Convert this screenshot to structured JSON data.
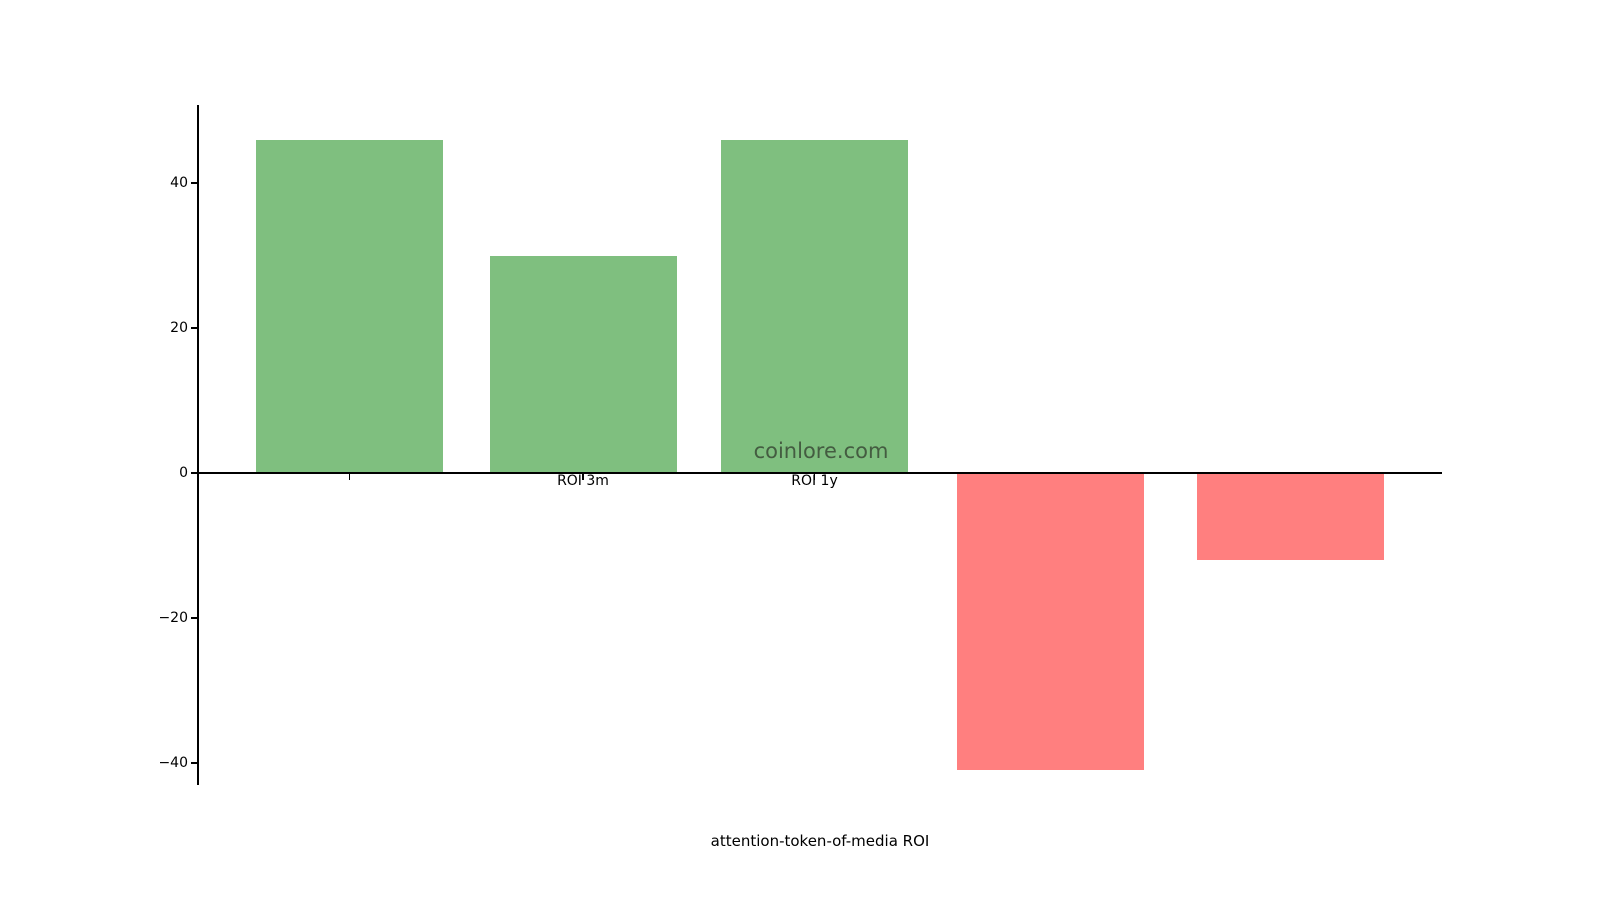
{
  "figure": {
    "background": "#ffffff",
    "watermark": {
      "text": "coinlore.com",
      "color": "#445c41"
    }
  },
  "chart_data": {
    "type": "bar",
    "title": "",
    "xlabel": "attention-token-of-media ROI",
    "ylabel": "",
    "categories": [
      "",
      "ROI 3m",
      "ROI 1y",
      "",
      ""
    ],
    "values": [
      46,
      30,
      46,
      -41,
      -12
    ],
    "positive_color": "#7FBF7F",
    "negative_color": "#FF7F7F",
    "axis_color": "#000000",
    "y_ticks": [
      {
        "value": 40,
        "label": "40"
      },
      {
        "value": 20,
        "label": "20"
      },
      {
        "value": 0,
        "label": "0"
      },
      {
        "value": -20,
        "label": "−20"
      },
      {
        "value": -40,
        "label": "−40"
      }
    ],
    "ylim": [
      -43,
      51
    ],
    "grid": false,
    "legend_position": "none",
    "notes": "x tick labels for first, fourth and fifth bars are not visible; ticks under negative bars are covered by the bars"
  }
}
